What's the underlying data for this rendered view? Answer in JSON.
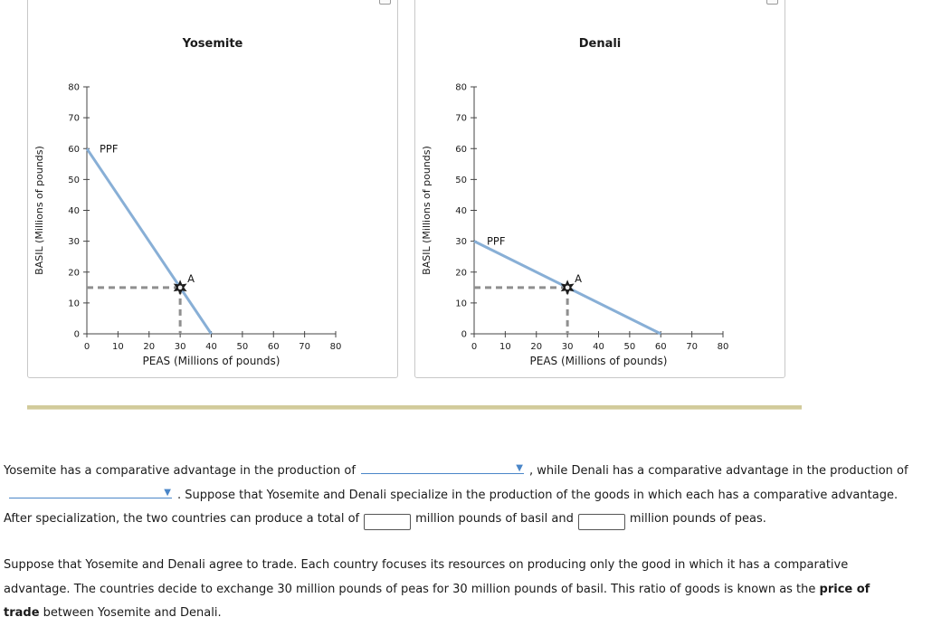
{
  "colors": {
    "ppf_line": "#88afd6",
    "dashed_guide": "#8f8f8f",
    "divider": "#d2cb9b",
    "dropdown_accent": "#4a86c8",
    "axis": "#444444",
    "text": "#1a1a1a"
  },
  "icons": {
    "chevron_down": "▼"
  },
  "chart_data": [
    {
      "type": "line",
      "title": "Yosemite",
      "xlabel": "PEAS (Millions of pounds)",
      "ylabel": "BASIL (Millions of pounds)",
      "xlim": [
        0,
        80
      ],
      "ylim": [
        0,
        80
      ],
      "xticks": [
        0,
        10,
        20,
        30,
        40,
        50,
        60,
        70,
        80
      ],
      "yticks": [
        0,
        10,
        20,
        30,
        40,
        50,
        60,
        70,
        80
      ],
      "grid": false,
      "legend": "none",
      "series": [
        {
          "name": "PPF",
          "points": [
            [
              0,
              60
            ],
            [
              40,
              0
            ]
          ]
        }
      ],
      "dashed_guides": [
        {
          "from": [
            0,
            15
          ],
          "to": [
            30,
            15
          ]
        },
        {
          "from": [
            30,
            15
          ],
          "to": [
            30,
            0
          ]
        }
      ],
      "annotations": [
        {
          "label": "A",
          "x": 30,
          "y": 15,
          "marker": "star"
        }
      ]
    },
    {
      "type": "line",
      "title": "Denali",
      "xlabel": "PEAS (Millions of pounds)",
      "ylabel": "BASIL (Millions of pounds)",
      "xlim": [
        0,
        80
      ],
      "ylim": [
        0,
        80
      ],
      "xticks": [
        0,
        10,
        20,
        30,
        40,
        50,
        60,
        70,
        80
      ],
      "yticks": [
        0,
        10,
        20,
        30,
        40,
        50,
        60,
        70,
        80
      ],
      "grid": false,
      "legend": "none",
      "series": [
        {
          "name": "PPF",
          "points": [
            [
              0,
              30
            ],
            [
              60,
              0
            ]
          ]
        }
      ],
      "dashed_guides": [
        {
          "from": [
            0,
            15
          ],
          "to": [
            30,
            15
          ]
        },
        {
          "from": [
            30,
            15
          ],
          "to": [
            30,
            0
          ]
        }
      ],
      "annotations": [
        {
          "label": "A",
          "x": 30,
          "y": 15,
          "marker": "star"
        }
      ]
    }
  ],
  "question": {
    "part1": "Yosemite has a comparative advantage in the production of",
    "dropdown1_value": "",
    "part2": ", while Denali has a comparative advantage in the production of",
    "dropdown2_value": "",
    "part3": ". Suppose that Yosemite and Denali specialize in the production of the goods in which each has a comparative advantage. After specialization, the two countries can produce a total of",
    "input1_value": "",
    "part4": "million pounds of basil and",
    "input2_value": "",
    "part5": "million pounds of peas."
  },
  "trade_paragraph": {
    "text1": "Suppose that Yosemite and Denali agree to trade. Each country focuses its resources on producing only the good in which it has a comparative advantage. The countries decide to exchange 30 million pounds of peas for 30 million pounds of basil. This ratio of goods is known as the ",
    "bold_text": "price of trade",
    "text2": " between Yosemite and Denali."
  }
}
